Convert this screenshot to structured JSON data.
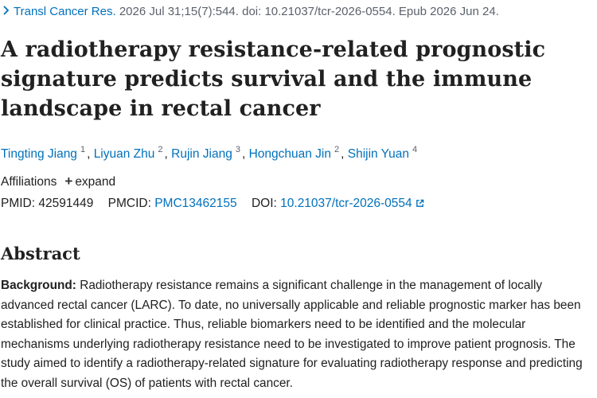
{
  "citation": {
    "journal": "Transl Cancer Res.",
    "details": " 2026 Jul 31;15(7):544. doi: 10.21037/tcr-2026-0554. Epub 2026 Jun 24."
  },
  "title": "A radiotherapy resistance-related prognostic signature predicts survival and the immune landscape in rectal cancer",
  "authors": [
    {
      "name": "Tingting Jiang",
      "aff": "1"
    },
    {
      "name": "Liyuan Zhu",
      "aff": "2"
    },
    {
      "name": "Rujin Jiang",
      "aff": "3"
    },
    {
      "name": "Hongchuan Jin",
      "aff": "2"
    },
    {
      "name": "Shijin Yuan",
      "aff": "4"
    }
  ],
  "affiliations": {
    "label": "Affiliations",
    "expand_label": "expand"
  },
  "identifiers": {
    "pmid_label": "PMID:",
    "pmid": "42591449",
    "pmcid_label": "PMCID:",
    "pmcid": "PMC13462155",
    "doi_label": "DOI:",
    "doi": "10.21037/tcr-2026-0554"
  },
  "abstract": {
    "heading": "Abstract",
    "background_label": "Background:",
    "background_text": " Radiotherapy resistance remains a significant challenge in the management of locally advanced rectal cancer (LARC). To date, no universally applicable and reliable prognostic marker has been established for clinical practice. Thus, reliable biomarkers need to be identified and the molecular mechanisms underlying radiotherapy resistance need to be investigated to improve patient prognosis. The study aimed to identify a radiotherapy-related signature for evaluating radiotherapy response and predicting the overall survival (OS) of patients with rectal cancer."
  },
  "icons": {
    "chevron": "chevron-right-icon",
    "plus": "plus-icon",
    "external": "external-link-icon"
  },
  "colors": {
    "link": "#0071bc",
    "text": "#212121",
    "muted": "#5b616b"
  }
}
